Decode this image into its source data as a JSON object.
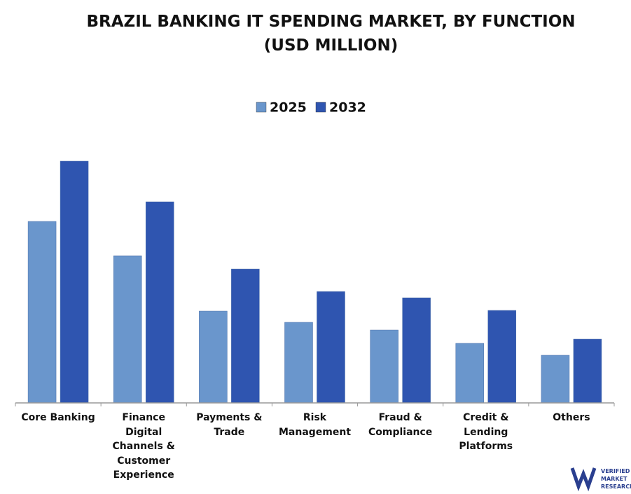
{
  "chart_data": {
    "type": "bar",
    "title": "BRAZIL BANKING IT SPENDING MARKET, BY FUNCTION (USD MILLION)",
    "categories": [
      "Core Banking",
      "Finance Digital Channels & Customer Experience",
      "Payments & Trade",
      "Risk Management",
      "Fraud & Compliance",
      "Credit & Lending Platforms",
      "Others"
    ],
    "series": [
      {
        "name": "2025",
        "color": "#6a96cc",
        "values": [
          259,
          210,
          131,
          115,
          104,
          85,
          68
        ]
      },
      {
        "name": "2032",
        "color": "#2f55b0",
        "values": [
          345,
          287,
          191,
          159,
          150,
          132,
          91
        ]
      }
    ],
    "legend": "top"
  },
  "logo": {
    "line1": "VERIFIED",
    "line2": "MARKET",
    "line3": "RESEARCH"
  }
}
